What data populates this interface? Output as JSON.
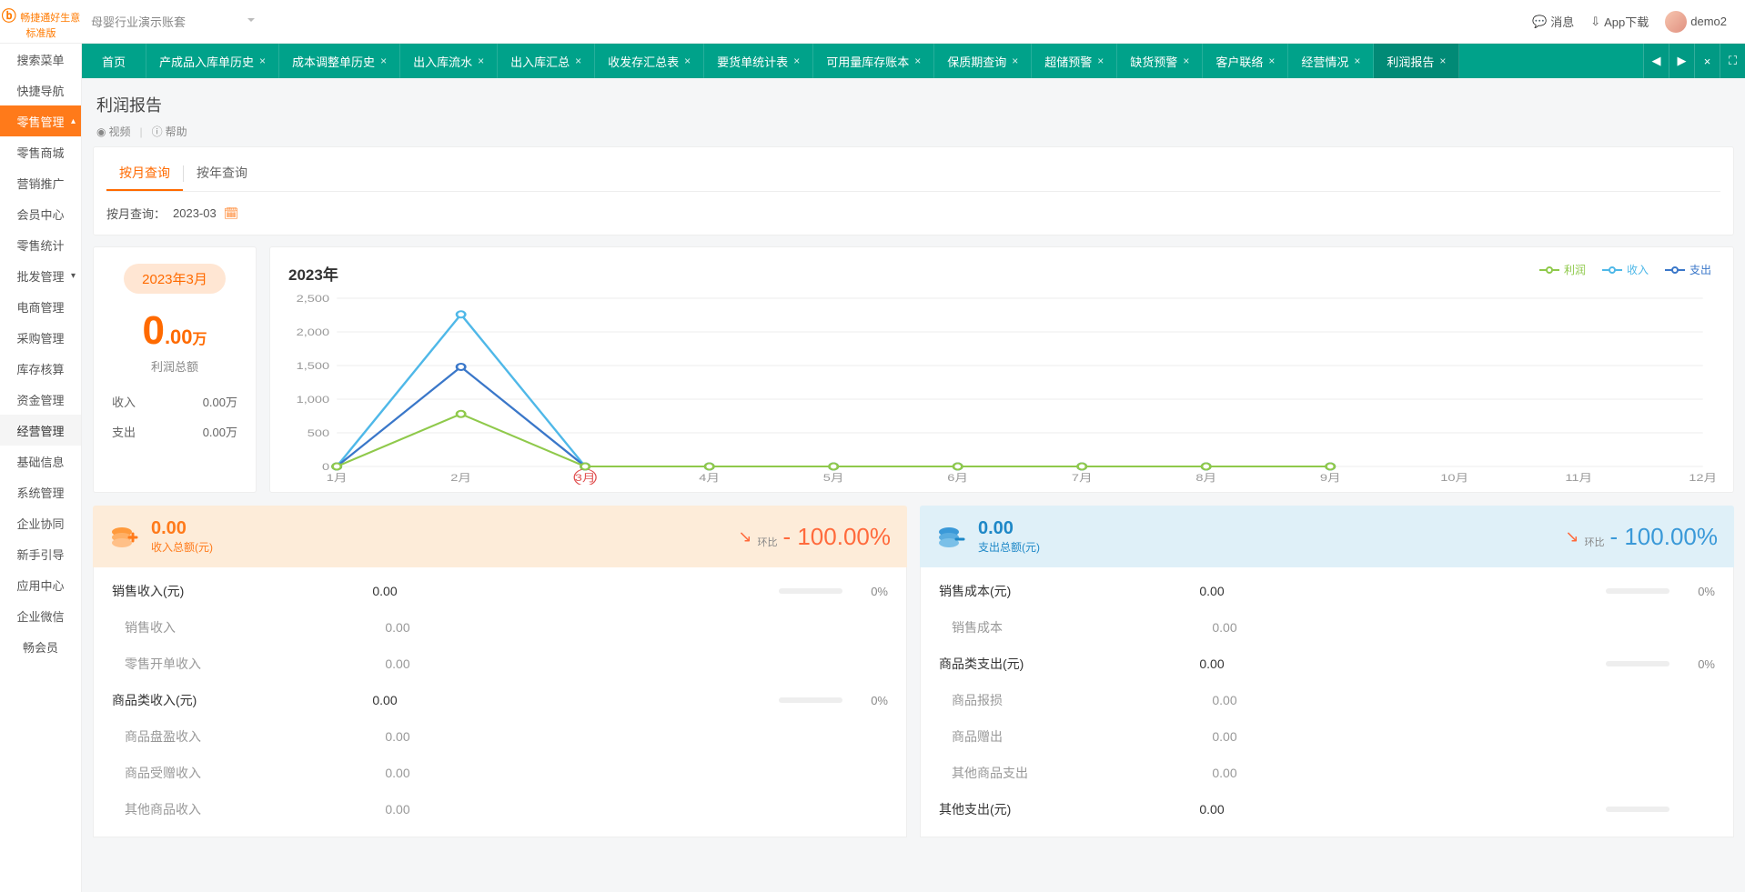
{
  "brand": {
    "name": "畅捷通好生意",
    "edition": "标准版"
  },
  "account_selector": "母婴行业演示账套",
  "topbar": {
    "msg": "消息",
    "app": "App下载",
    "user": "demo2"
  },
  "sidebar": [
    {
      "label": "搜索菜单",
      "key": "search"
    },
    {
      "label": "快捷导航",
      "key": "quicknav"
    },
    {
      "label": "零售管理",
      "key": "retail",
      "orange": true,
      "caret": "▴"
    },
    {
      "label": "零售商城",
      "key": "retail-mall"
    },
    {
      "label": "营销推广",
      "key": "marketing"
    },
    {
      "label": "会员中心",
      "key": "member"
    },
    {
      "label": "零售统计",
      "key": "retail-stats"
    },
    {
      "label": "批发管理",
      "key": "wholesale",
      "caret": "▾"
    },
    {
      "label": "电商管理",
      "key": "ecom"
    },
    {
      "label": "采购管理",
      "key": "purchase"
    },
    {
      "label": "库存核算",
      "key": "inventory"
    },
    {
      "label": "资金管理",
      "key": "funds"
    },
    {
      "label": "经营管理",
      "key": "ops",
      "active": true
    },
    {
      "label": "基础信息",
      "key": "basic"
    },
    {
      "label": "系统管理",
      "key": "system"
    },
    {
      "label": "企业协同",
      "key": "collab"
    },
    {
      "label": "新手引导",
      "key": "guide"
    },
    {
      "label": "应用中心",
      "key": "appcenter"
    },
    {
      "label": "企业微信",
      "key": "wecom"
    },
    {
      "label": "畅会员",
      "key": "vip"
    }
  ],
  "tabs": [
    {
      "label": "首页",
      "closable": false
    },
    {
      "label": "产成品入库单历史",
      "closable": true
    },
    {
      "label": "成本调整单历史",
      "closable": true
    },
    {
      "label": "出入库流水",
      "closable": true
    },
    {
      "label": "出入库汇总",
      "closable": true
    },
    {
      "label": "收发存汇总表",
      "closable": true
    },
    {
      "label": "要货单统计表",
      "closable": true
    },
    {
      "label": "可用量库存账本",
      "closable": true
    },
    {
      "label": "保质期查询",
      "closable": true
    },
    {
      "label": "超储预警",
      "closable": true
    },
    {
      "label": "缺货预警",
      "closable": true
    },
    {
      "label": "客户联络",
      "closable": true
    },
    {
      "label": "经营情况",
      "closable": true
    },
    {
      "label": "利润报告",
      "closable": true,
      "active": true
    }
  ],
  "page": {
    "title": "利润报告",
    "help_video": "视频",
    "help_doc": "帮助",
    "query_tabs": {
      "by_month": "按月查询",
      "by_year": "按年查询"
    },
    "query_label": "按月查询：",
    "query_value": "2023-03"
  },
  "summary": {
    "period": "2023年3月",
    "profit_int": "0",
    "profit_dec": ".00",
    "profit_unit": "万",
    "profit_label": "利润总额",
    "income_label": "收入",
    "income_value": "0.00万",
    "expense_label": "支出",
    "expense_value": "0.00万"
  },
  "chart": {
    "title": "2023年",
    "legend": {
      "profit": "利润",
      "income": "收入",
      "expense": "支出"
    },
    "colors": {
      "profit": "#8fc94b",
      "income": "#4fb8e8",
      "expense": "#3a77c9"
    },
    "background_color": "#ffffff",
    "grid_color": "#eeeeee",
    "type": "line",
    "ylim": [
      0,
      2500
    ],
    "ytick_step": 500,
    "yticks": [
      "0",
      "500",
      "1,000",
      "1,500",
      "2,000",
      "2,500"
    ],
    "xlabels": [
      "1月",
      "2月",
      "3月",
      "4月",
      "5月",
      "6月",
      "7月",
      "8月",
      "9月",
      "10月",
      "11月",
      "12月"
    ],
    "x_highlight_index": 2,
    "series": {
      "profit": [
        0,
        780,
        0,
        0,
        0,
        0,
        0,
        0,
        0,
        null,
        null,
        null
      ],
      "income": [
        0,
        2260,
        0,
        0,
        0,
        0,
        0,
        0,
        0,
        null,
        null,
        null
      ],
      "expense": [
        0,
        1480,
        0,
        0,
        0,
        0,
        0,
        0,
        0,
        null,
        null,
        null
      ]
    }
  },
  "panels": {
    "income": {
      "amount": "0.00",
      "label": "收入总额(元)",
      "hb": "环比",
      "pct": "- 100.00%",
      "rows": [
        {
          "type": "main",
          "label": "销售收入(元)",
          "val": "0.00",
          "pct": "0%"
        },
        {
          "type": "sub",
          "label": "销售收入",
          "val": "0.00"
        },
        {
          "type": "sub",
          "label": "零售开单收入",
          "val": "0.00"
        },
        {
          "type": "main",
          "label": "商品类收入(元)",
          "val": "0.00",
          "pct": "0%"
        },
        {
          "type": "sub",
          "label": "商品盘盈收入",
          "val": "0.00"
        },
        {
          "type": "sub",
          "label": "商品受赠收入",
          "val": "0.00"
        },
        {
          "type": "sub",
          "label": "其他商品收入",
          "val": "0.00"
        }
      ]
    },
    "expense": {
      "amount": "0.00",
      "label": "支出总额(元)",
      "hb": "环比",
      "pct": "- 100.00%",
      "rows": [
        {
          "type": "main",
          "label": "销售成本(元)",
          "val": "0.00",
          "pct": "0%"
        },
        {
          "type": "sub",
          "label": "销售成本",
          "val": "0.00"
        },
        {
          "type": "main",
          "label": "商品类支出(元)",
          "val": "0.00",
          "pct": "0%"
        },
        {
          "type": "sub",
          "label": "商品报损",
          "val": "0.00"
        },
        {
          "type": "sub",
          "label": "商品赠出",
          "val": "0.00"
        },
        {
          "type": "sub",
          "label": "其他商品支出",
          "val": "0.00"
        },
        {
          "type": "main",
          "label": "其他支出(元)",
          "val": "0.00"
        }
      ]
    }
  }
}
